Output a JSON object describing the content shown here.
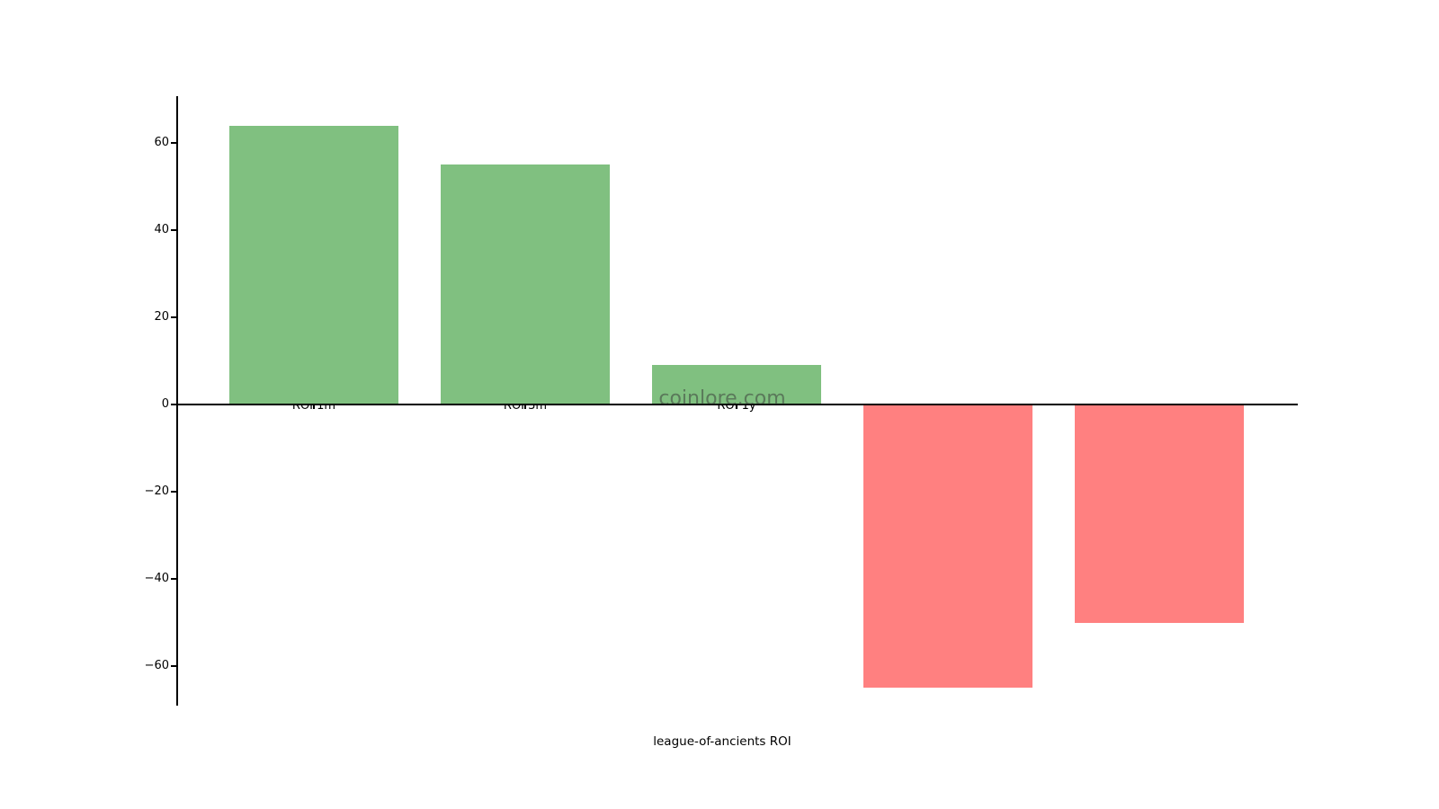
{
  "watermark": "coinlore.com",
  "chart_data": {
    "type": "bar",
    "title": "league-of-ancients ROI",
    "categories": [
      "ROI 1m",
      "ROI 3m",
      "ROI 1y",
      "",
      ""
    ],
    "values": [
      64,
      55,
      9,
      -65,
      -50
    ],
    "series_note": "positive bars green, negative bars red; labels of the two negative bars are hidden behind the bars",
    "colors": {
      "positive_bar": "#80c080",
      "negative_bar": "#ff8080",
      "axis": "#000000",
      "watermark": "rgba(55,55,55,0.52)"
    },
    "xlabel": "",
    "ylabel": "",
    "y_ticks": [
      60,
      40,
      20,
      0,
      -20,
      -40,
      -60
    ],
    "ylim": [
      -69,
      71
    ],
    "grid": false,
    "legend": false
  }
}
